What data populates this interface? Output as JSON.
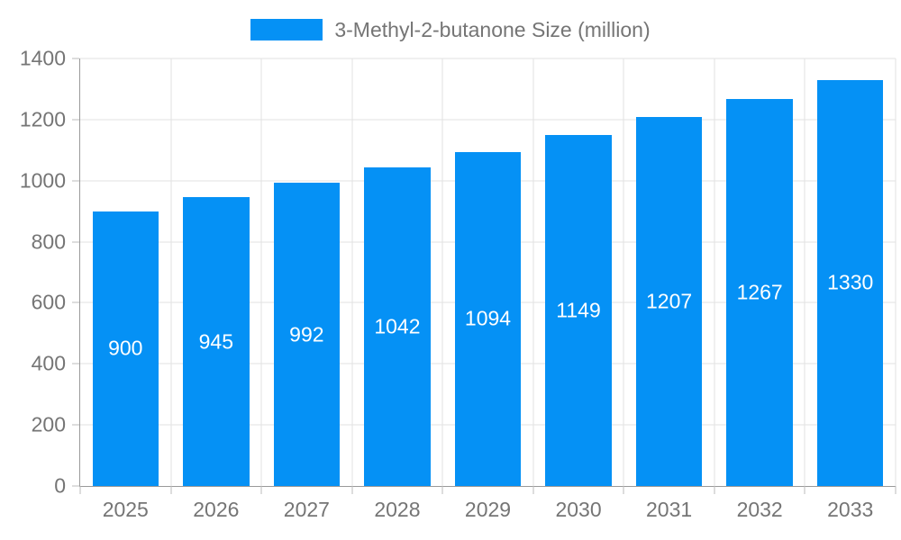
{
  "legend": {
    "swatch_color": "#0591f5"
  },
  "chart_data": {
    "type": "bar",
    "title": "3-Methyl-2-butanone Size (million)",
    "categories": [
      "2025",
      "2026",
      "2027",
      "2028",
      "2029",
      "2030",
      "2031",
      "2032",
      "2033"
    ],
    "values": [
      900,
      945,
      992,
      1042,
      1094,
      1149,
      1207,
      1267,
      1330
    ],
    "series": [
      {
        "name": "3-Methyl-2-butanone Size (million)",
        "values": [
          900,
          945,
          992,
          1042,
          1094,
          1149,
          1207,
          1267,
          1330
        ]
      }
    ],
    "xlabel": "",
    "ylabel": "",
    "ylim": [
      0,
      1400
    ],
    "ytick_step": 200,
    "ytick_labels": [
      "0",
      "200",
      "400",
      "600",
      "800",
      "1000",
      "1200",
      "1400"
    ],
    "grid": true,
    "legend_position": "top",
    "bar_label_position": "inside-center",
    "colors": {
      "bar": "#0591f5",
      "bar_label": "#ffffff",
      "axis": "#9a9a9a",
      "grid": "#e2e2e2",
      "tick": "#bbbbbb",
      "text": "#757575",
      "background": "#ffffff"
    }
  }
}
